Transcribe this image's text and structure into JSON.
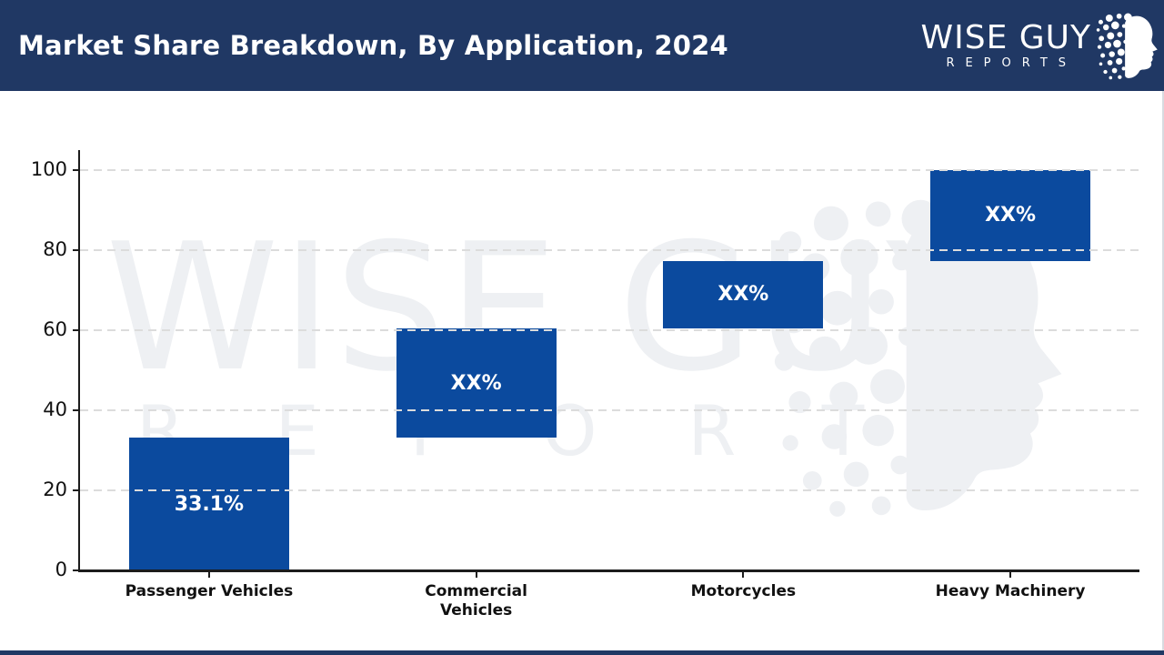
{
  "header": {
    "title": "Market Share Breakdown, By Application, 2024",
    "bg_color": "#203864",
    "logo": {
      "line1": "WISE GUY",
      "line2": "REPORTS"
    }
  },
  "watermark": {
    "line1": "WISE GUY",
    "line2": "REPORTS"
  },
  "chart_data": {
    "type": "bar",
    "subtype": "waterfall",
    "title": "Market Share Breakdown, By Application, 2024",
    "categories": [
      "Passenger Vehicles",
      "Commercial\nVehicles",
      "Motorcycles",
      "Heavy Machinery"
    ],
    "segments": [
      [
        0,
        33.1
      ],
      [
        33.1,
        60.5
      ],
      [
        60.5,
        77.3
      ],
      [
        77.3,
        100
      ]
    ],
    "bar_labels": [
      "33.1%",
      "XX%",
      "XX%",
      "XX%"
    ],
    "yticks": [
      0,
      20,
      40,
      60,
      80,
      100
    ],
    "ylim": [
      0,
      105
    ],
    "xlabel": "",
    "ylabel": "",
    "bar_color": "#0b4a9e",
    "label_color": "#ffffff",
    "grid": "horizontal dashed gridlines drawn over bars",
    "gridline_color": "#dcdcdc",
    "legend": "none"
  },
  "footer": {
    "bar_color": "#203864"
  }
}
